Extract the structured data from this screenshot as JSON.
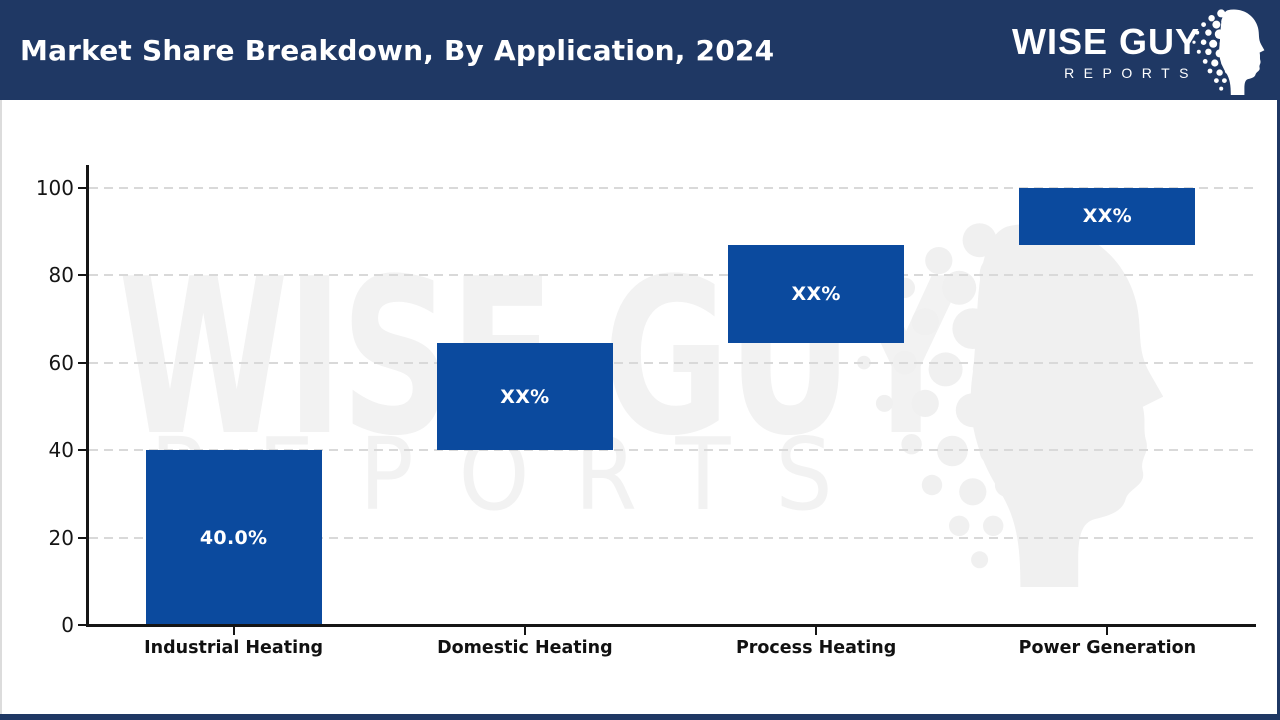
{
  "header": {
    "title": "Market Share Breakdown, By Application, 2024",
    "bg_color": "#1f3864"
  },
  "brand": {
    "line1": "WISE GUY",
    "line2": "REPORTS"
  },
  "watermark": {
    "line1": "WISE GUY",
    "line2": "REPORTS",
    "color": "#f2f2f2"
  },
  "chart_data": {
    "type": "waterfall",
    "title": "Market Share Breakdown, By Application, 2024",
    "categories": [
      "Industrial Heating",
      "Domestic Heating",
      "Process Heating",
      "Power Generation"
    ],
    "segments": [
      {
        "category": "Industrial Heating",
        "start": 0,
        "end": 40,
        "label": "40.0%"
      },
      {
        "category": "Domestic Heating",
        "start": 40,
        "end": 64.5,
        "label": "XX%"
      },
      {
        "category": "Process Heating",
        "start": 64.5,
        "end": 87,
        "label": "XX%"
      },
      {
        "category": "Power Generation",
        "start": 87,
        "end": 100,
        "label": "XX%"
      }
    ],
    "xlabel": "",
    "ylabel": "",
    "ylim": [
      0,
      100
    ],
    "yticks": [
      0,
      20,
      40,
      60,
      80,
      100
    ],
    "grid": "horizontal-dashed",
    "legend": "none",
    "bar_color": "#0b4a9e",
    "bar_label_color": "#ffffff",
    "axis_color": "#151515"
  }
}
